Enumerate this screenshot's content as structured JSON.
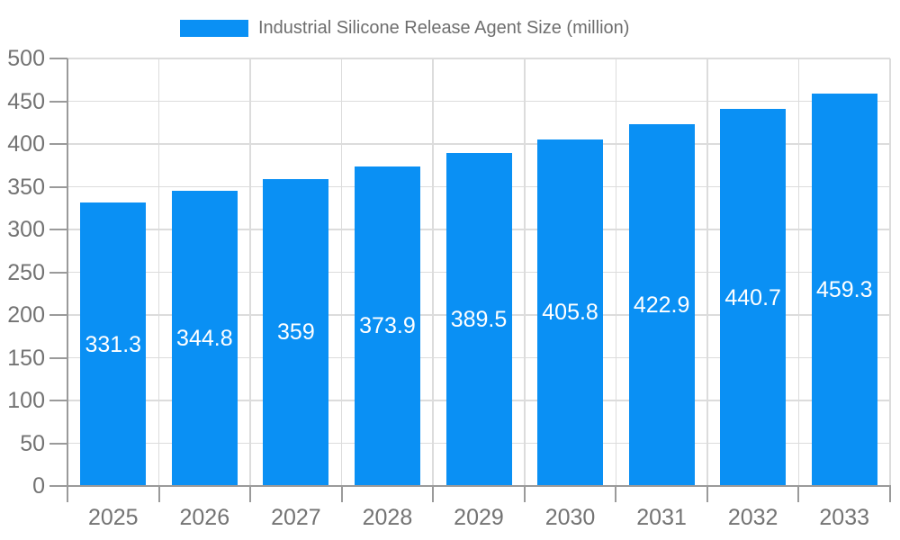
{
  "chart_data": {
    "type": "bar",
    "title": "Industrial Silicone Release Agent Size (million)",
    "categories": [
      "2025",
      "2026",
      "2027",
      "2028",
      "2029",
      "2030",
      "2031",
      "2032",
      "2033"
    ],
    "values": [
      331.3,
      344.8,
      359,
      373.9,
      389.5,
      405.8,
      422.9,
      440.7,
      459.3
    ],
    "xlabel": "",
    "ylabel": "",
    "ylim": [
      0,
      500
    ],
    "yticks": [
      0,
      50,
      100,
      150,
      200,
      250,
      300,
      350,
      400,
      450,
      500
    ],
    "grid": "on",
    "legend_position": "top",
    "colors": {
      "bar": "#0a90f4",
      "axis": "#9a9a9a",
      "gridline": "#dcdcdc",
      "tick_label": "#737373",
      "legend_label": "#6e6e6e",
      "value_label": "#ffffff",
      "background": "#ffffff"
    }
  }
}
